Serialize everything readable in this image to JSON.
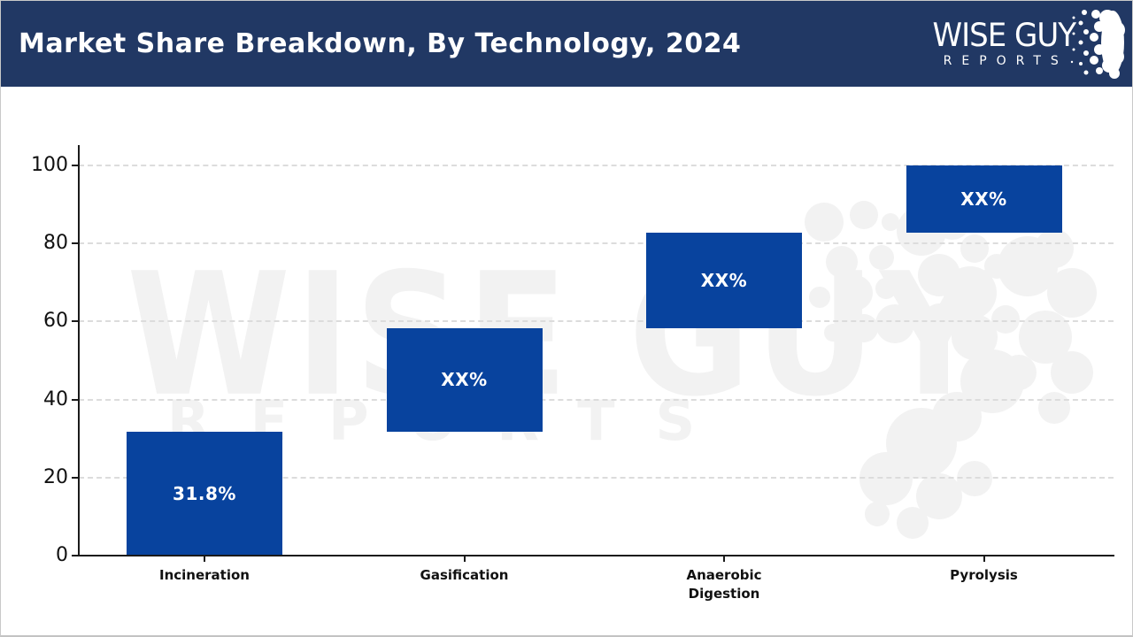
{
  "header": {
    "title": "Market Share Breakdown, By Technology, 2024",
    "logo": {
      "line1": "WISE GUY",
      "line2": "REPORTS"
    }
  },
  "watermark": {
    "line1": "WISE GUY",
    "line2": "REPORTS"
  },
  "colors": {
    "header_background": "#213864",
    "bar_blue": "#08439e",
    "gridline_gray": "#dcdcdc",
    "watermark_gray": "#f2f2f2"
  },
  "chart_data": {
    "type": "bar",
    "subtype": "waterfall",
    "title": "Market Share Breakdown, By Technology, 2024",
    "categories": [
      "Incineration",
      "Gasification",
      "Anaerobic Digestion",
      "Pyrolysis"
    ],
    "segments": [
      {
        "category": "Incineration",
        "start": 0,
        "end": 31.8,
        "label": "31.8%"
      },
      {
        "category": "Gasification",
        "start": 31.8,
        "end": 58.2,
        "label": "XX%"
      },
      {
        "category": "Anaerobic Digestion",
        "start": 58.2,
        "end": 82.8,
        "label": "XX%"
      },
      {
        "category": "Pyrolysis",
        "start": 82.8,
        "end": 100,
        "label": "XX%"
      }
    ],
    "y_ticks": [
      0,
      20,
      40,
      60,
      80,
      100
    ],
    "ylim": [
      0,
      105
    ],
    "xlabel": "",
    "ylabel": "",
    "grid": "horizontal-dashed",
    "legend_position": "none",
    "bar_color": "#08439e"
  }
}
